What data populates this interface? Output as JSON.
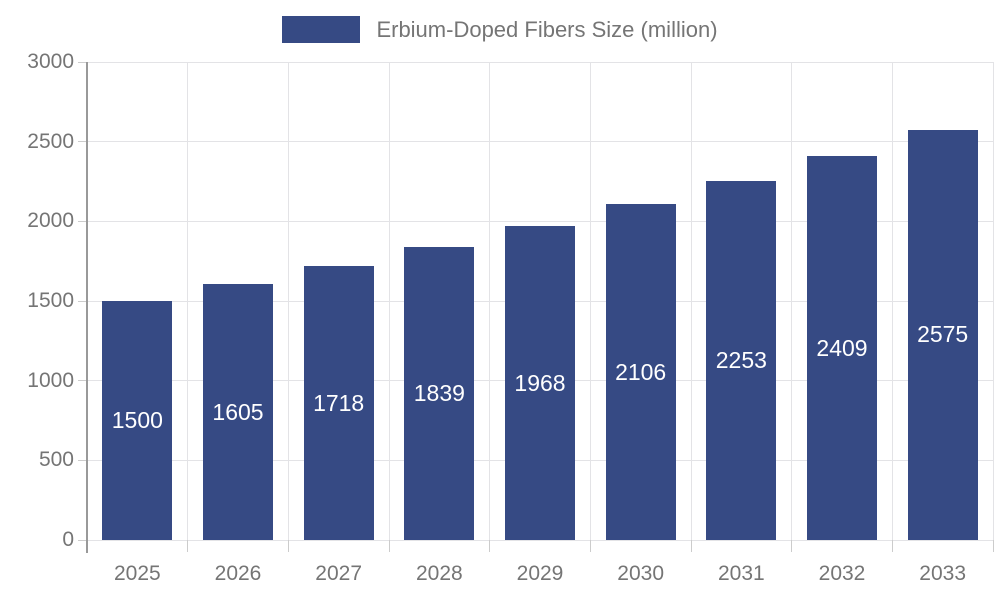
{
  "legend": {
    "label": "Erbium-Doped Fibers Size (million)"
  },
  "chart_data": {
    "type": "bar",
    "title": "Erbium-Doped Fibers Size (million)",
    "series": [
      {
        "name": "Erbium-Doped Fibers Size (million)",
        "values": [
          1500,
          1605,
          1718,
          1839,
          1968,
          2106,
          2253,
          2409,
          2575
        ]
      }
    ],
    "categories": [
      "2025",
      "2026",
      "2027",
      "2028",
      "2029",
      "2030",
      "2031",
      "2032",
      "2033"
    ],
    "bar_labels": [
      "1500",
      "1605",
      "1718",
      "1839",
      "1968",
      "2106",
      "2253",
      "2409",
      "2575"
    ],
    "xlabel": "",
    "ylabel": "",
    "ylim": [
      0,
      3000
    ],
    "yticks": [
      0,
      500,
      1000,
      1500,
      2000,
      2500,
      3000
    ],
    "grid": true,
    "legend_position": "top",
    "colors": {
      "bar": "#364A84",
      "bar_value_text": "#FFFFFF",
      "grid": "#E3E3E6",
      "axis_line": "#999999",
      "tick_mark": "#CCCCCC",
      "axis_text": "#757575"
    }
  }
}
